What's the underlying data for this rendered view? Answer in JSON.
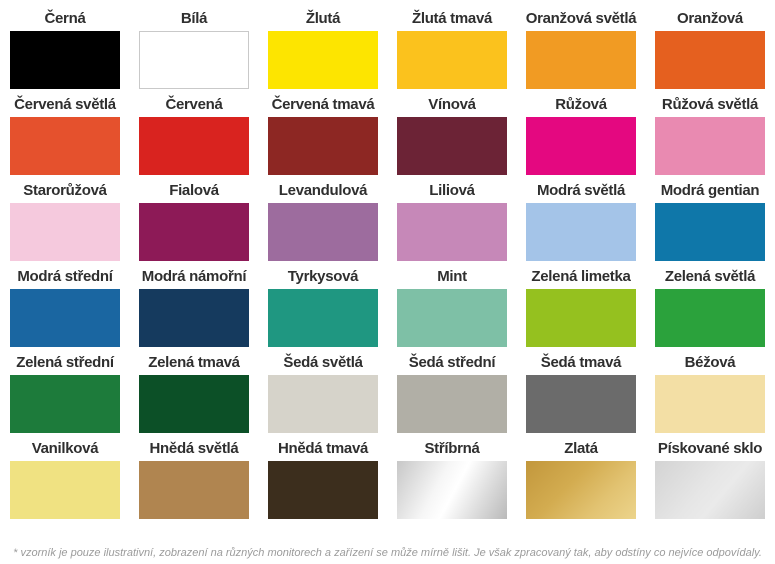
{
  "page": {
    "background": "#ffffff",
    "footnote": "* vzorník je pouze ilustrativní, zobrazení na různých monitorech a zařízení se může mírně lišit. Je však zpracovaný tak, aby odstíny co nejvíce odpovídaly."
  },
  "swatches": [
    {
      "label": "Černá",
      "color": "#000000"
    },
    {
      "label": "Bílá",
      "color": "#ffffff",
      "border": "#c9c9c9"
    },
    {
      "label": "Žlutá",
      "color": "#fde500"
    },
    {
      "label": "Žlutá tmavá",
      "color": "#fbc21d"
    },
    {
      "label": "Oranžová světlá",
      "color": "#f19b23"
    },
    {
      "label": "Oranžová",
      "color": "#e5601f"
    },
    {
      "label": "Červená světlá",
      "color": "#e5512d"
    },
    {
      "label": "Červená",
      "color": "#d9231f"
    },
    {
      "label": "Červená tmavá",
      "color": "#8d2723"
    },
    {
      "label": "Vínová",
      "color": "#6c2336"
    },
    {
      "label": "Růžová",
      "color": "#e40880"
    },
    {
      "label": "Růžová světlá",
      "color": "#e98ab1"
    },
    {
      "label": "Starorůžová",
      "color": "#f5c9dd"
    },
    {
      "label": "Fialová",
      "color": "#8d1a57"
    },
    {
      "label": "Levandulová",
      "color": "#9d6c9e"
    },
    {
      "label": "Liliová",
      "color": "#c688b8"
    },
    {
      "label": "Modrá světlá",
      "color": "#a4c4e8"
    },
    {
      "label": "Modrá gentian",
      "color": "#0f77a9"
    },
    {
      "label": "Modrá střední",
      "color": "#1a66a1"
    },
    {
      "label": "Modrá námořní",
      "color": "#153a5e"
    },
    {
      "label": "Tyrkysová",
      "color": "#1f9781"
    },
    {
      "label": "Mint",
      "color": "#7ec0a6"
    },
    {
      "label": "Zelená limetka",
      "color": "#95c11f"
    },
    {
      "label": "Zelená světlá",
      "color": "#2ba23c"
    },
    {
      "label": "Zelená střední",
      "color": "#1d7b3b"
    },
    {
      "label": "Zelená tmavá",
      "color": "#0c5027"
    },
    {
      "label": "Šedá světlá",
      "color": "#d6d3ca"
    },
    {
      "label": "Šedá střední",
      "color": "#b1afa6"
    },
    {
      "label": "Šedá tmavá",
      "color": "#6b6b6b"
    },
    {
      "label": "Béžová",
      "color": "#f3dfa5"
    },
    {
      "label": "Vanilková",
      "color": "#f0e282"
    },
    {
      "label": "Hnědá světlá",
      "color": "#b08550"
    },
    {
      "label": "Hnědá tmavá",
      "color": "#3c2e1d"
    },
    {
      "label": "Stříbrná",
      "gradient": "linear-gradient(118deg, #c7c7c7 0%, #f6f6f6 38%, #ffffff 52%, #dddddd 75%, #b9b9b9 100%)"
    },
    {
      "label": "Zlatá",
      "gradient": "linear-gradient(135deg, #c2973c 0%, #d3ac50 40%, #e2c372 70%, #ecd48b 100%)"
    },
    {
      "label": "Pískované sklo",
      "gradient": "linear-gradient(130deg, #d3d3d3 0%, #e6e6e6 45%, #eaeaea 60%, #cecece 100%)"
    }
  ]
}
